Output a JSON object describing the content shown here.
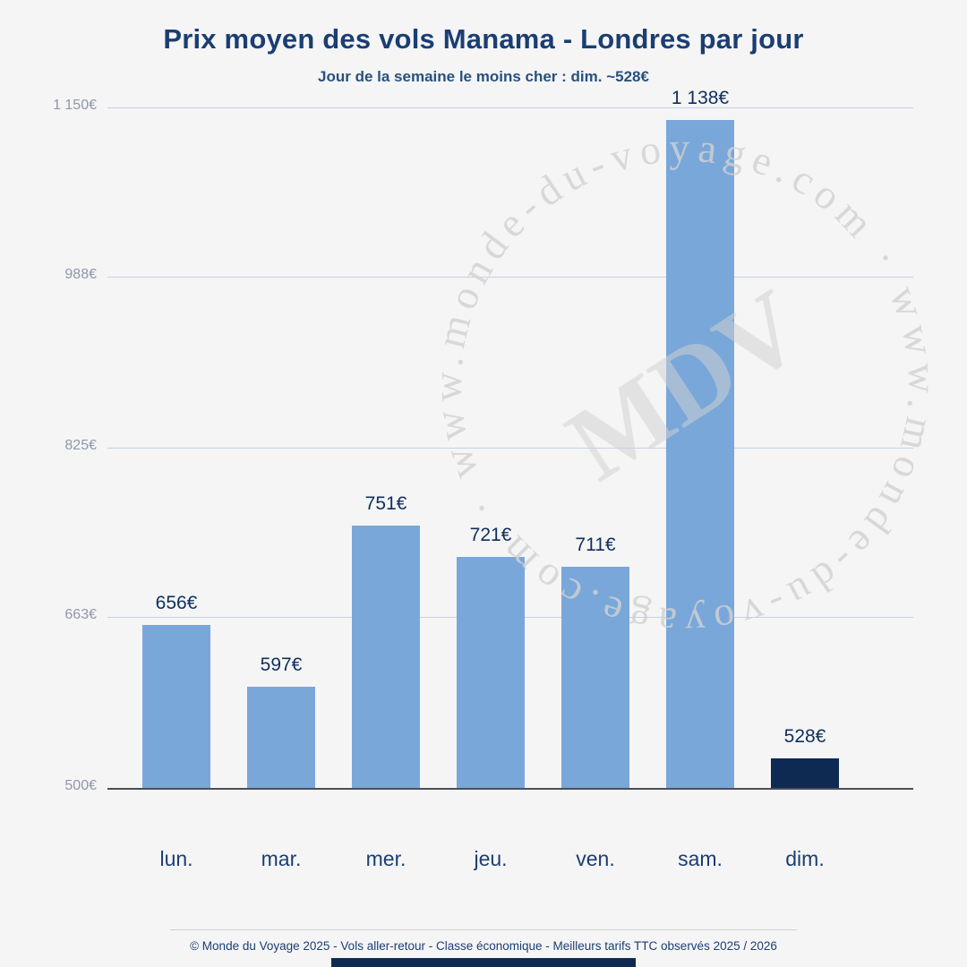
{
  "header": {
    "title": "Prix moyen des vols Manama - Londres par jour",
    "subtitle": "Jour de la semaine le moins cher : dim. ~528€"
  },
  "watermark": {
    "circle_text": "www.monde-du-voyage.com",
    "center_text": "MDV"
  },
  "footer": {
    "text": "© Monde du Voyage 2025 - Vols aller-retour - Classe économique - Meilleurs tarifs TTC observés 2025 / 2026"
  },
  "chart_data": {
    "type": "bar",
    "title": "Prix moyen des vols Manama - Londres par jour",
    "subtitle": "Jour de la semaine le moins cher : dim. ~528€",
    "categories": [
      "lun.",
      "mar.",
      "mer.",
      "jeu.",
      "ven.",
      "sam.",
      "dim."
    ],
    "values": [
      656,
      597,
      751,
      721,
      711,
      1138,
      528
    ],
    "value_labels": [
      "656€",
      "597€",
      "751€",
      "721€",
      "711€",
      "1 138€",
      "528€"
    ],
    "xlabel": "",
    "ylabel": "",
    "ylim": [
      500,
      1150
    ],
    "yticks": [
      {
        "value": 500,
        "label": "500€"
      },
      {
        "value": 663,
        "label": "663€"
      },
      {
        "value": 825,
        "label": "825€"
      },
      {
        "value": 988,
        "label": "988€"
      },
      {
        "value": 1150,
        "label": "1 150€"
      }
    ],
    "grid": true,
    "legend": false,
    "bar_color": "#79a7d9",
    "highlight_index": 6,
    "highlight_color": "#0e2a52",
    "cheapest_day": "dim.",
    "cheapest_price": "528€"
  }
}
